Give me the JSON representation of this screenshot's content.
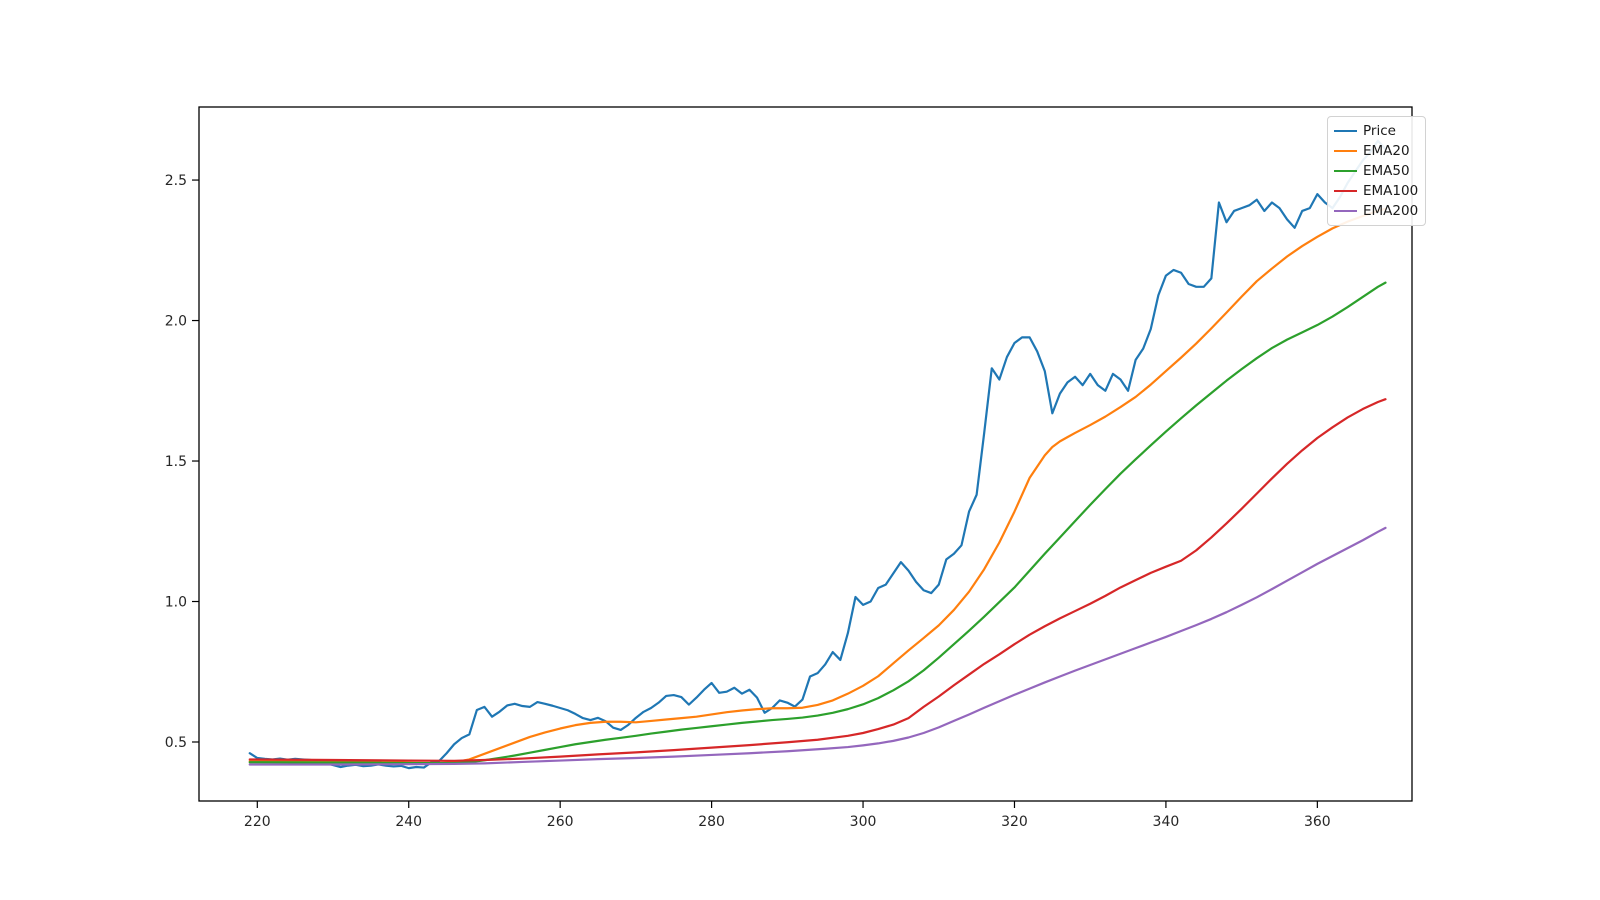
{
  "figure": {
    "background": "#ffffff"
  },
  "chart_data": {
    "type": "line",
    "title": "",
    "xlabel": "",
    "ylabel": "",
    "grid": false,
    "legend_position": "upper right",
    "xlim": [
      212.3,
      372.5
    ],
    "ylim": [
      0.29,
      2.76
    ],
    "x_ticks": [
      {
        "v": 220,
        "label": "220"
      },
      {
        "v": 240,
        "label": "240"
      },
      {
        "v": 260,
        "label": "260"
      },
      {
        "v": 280,
        "label": "280"
      },
      {
        "v": 300,
        "label": "300"
      },
      {
        "v": 320,
        "label": "320"
      },
      {
        "v": 340,
        "label": "340"
      },
      {
        "v": 360,
        "label": "360"
      }
    ],
    "y_ticks": [
      {
        "v": 0.5,
        "label": "0.5"
      },
      {
        "v": 1.0,
        "label": "1.0"
      },
      {
        "v": 1.5,
        "label": "1.5"
      },
      {
        "v": 2.0,
        "label": "2.0"
      },
      {
        "v": 2.5,
        "label": "2.5"
      }
    ],
    "series": [
      {
        "name": "Price",
        "color": "#1f77b4",
        "x_start": 219,
        "x_step": 1,
        "values": [
          0.46,
          0.443,
          0.44,
          0.438,
          0.441,
          0.437,
          0.44,
          0.438,
          0.436,
          0.433,
          0.425,
          0.418,
          0.411,
          0.416,
          0.419,
          0.414,
          0.416,
          0.42,
          0.416,
          0.413,
          0.415,
          0.407,
          0.411,
          0.409,
          0.428,
          0.432,
          0.46,
          0.492,
          0.514,
          0.527,
          0.614,
          0.625,
          0.59,
          0.608,
          0.63,
          0.636,
          0.628,
          0.625,
          0.642,
          0.636,
          0.629,
          0.621,
          0.613,
          0.6,
          0.585,
          0.578,
          0.586,
          0.574,
          0.551,
          0.543,
          0.561,
          0.586,
          0.607,
          0.621,
          0.64,
          0.664,
          0.667,
          0.66,
          0.633,
          0.658,
          0.686,
          0.71,
          0.675,
          0.679,
          0.693,
          0.672,
          0.686,
          0.658,
          0.604,
          0.621,
          0.648,
          0.64,
          0.626,
          0.651,
          0.733,
          0.745,
          0.776,
          0.82,
          0.792,
          0.888,
          1.016,
          0.988,
          1.0,
          1.048,
          1.06,
          1.1,
          1.14,
          1.11,
          1.07,
          1.04,
          1.03,
          1.06,
          1.15,
          1.17,
          1.2,
          1.32,
          1.38,
          1.6,
          1.83,
          1.79,
          1.87,
          1.92,
          1.94,
          1.94,
          1.89,
          1.82,
          1.67,
          1.74,
          1.78,
          1.8,
          1.77,
          1.81,
          1.77,
          1.75,
          1.81,
          1.79,
          1.75,
          1.86,
          1.9,
          1.97,
          2.09,
          2.16,
          2.18,
          2.17,
          2.13,
          2.12,
          2.12,
          2.15,
          2.42,
          2.35,
          2.39,
          2.4,
          2.41,
          2.43,
          2.39,
          2.42,
          2.4,
          2.36,
          2.33,
          2.39,
          2.4,
          2.45,
          2.42,
          2.4,
          2.44,
          2.49,
          2.53,
          2.57,
          2.6,
          2.64,
          2.61
        ]
      },
      {
        "name": "EMA20",
        "color": "#ff7f0e",
        "points": [
          [
            219,
            0.432
          ],
          [
            224,
            0.431
          ],
          [
            230,
            0.43
          ],
          [
            236,
            0.428
          ],
          [
            241,
            0.426
          ],
          [
            244,
            0.425
          ],
          [
            246,
            0.428
          ],
          [
            248,
            0.438
          ],
          [
            250,
            0.458
          ],
          [
            252,
            0.478
          ],
          [
            254,
            0.498
          ],
          [
            256,
            0.518
          ],
          [
            258,
            0.534
          ],
          [
            260,
            0.548
          ],
          [
            262,
            0.56
          ],
          [
            264,
            0.568
          ],
          [
            266,
            0.572
          ],
          [
            268,
            0.572
          ],
          [
            270,
            0.57
          ],
          [
            272,
            0.575
          ],
          [
            274,
            0.58
          ],
          [
            276,
            0.585
          ],
          [
            278,
            0.59
          ],
          [
            280,
            0.598
          ],
          [
            282,
            0.606
          ],
          [
            284,
            0.612
          ],
          [
            286,
            0.617
          ],
          [
            288,
            0.62
          ],
          [
            290,
            0.62
          ],
          [
            292,
            0.622
          ],
          [
            294,
            0.632
          ],
          [
            296,
            0.648
          ],
          [
            298,
            0.672
          ],
          [
            300,
            0.7
          ],
          [
            302,
            0.734
          ],
          [
            304,
            0.78
          ],
          [
            306,
            0.826
          ],
          [
            308,
            0.87
          ],
          [
            310,
            0.915
          ],
          [
            312,
            0.97
          ],
          [
            314,
            1.035
          ],
          [
            316,
            1.115
          ],
          [
            318,
            1.21
          ],
          [
            320,
            1.32
          ],
          [
            322,
            1.44
          ],
          [
            324,
            1.52
          ],
          [
            325,
            1.55
          ],
          [
            326,
            1.57
          ],
          [
            327,
            1.585
          ],
          [
            328,
            1.6
          ],
          [
            330,
            1.628
          ],
          [
            332,
            1.658
          ],
          [
            334,
            1.692
          ],
          [
            336,
            1.728
          ],
          [
            338,
            1.772
          ],
          [
            340,
            1.82
          ],
          [
            342,
            1.868
          ],
          [
            344,
            1.918
          ],
          [
            346,
            1.972
          ],
          [
            348,
            2.028
          ],
          [
            350,
            2.085
          ],
          [
            352,
            2.14
          ],
          [
            354,
            2.185
          ],
          [
            356,
            2.228
          ],
          [
            358,
            2.265
          ],
          [
            360,
            2.298
          ],
          [
            362,
            2.328
          ],
          [
            364,
            2.352
          ],
          [
            366,
            2.372
          ],
          [
            368,
            2.39
          ],
          [
            369,
            2.398
          ]
        ]
      },
      {
        "name": "EMA50",
        "color": "#2ca02c",
        "points": [
          [
            219,
            0.428
          ],
          [
            230,
            0.427
          ],
          [
            240,
            0.425
          ],
          [
            246,
            0.425
          ],
          [
            248,
            0.428
          ],
          [
            250,
            0.435
          ],
          [
            252,
            0.443
          ],
          [
            254,
            0.452
          ],
          [
            256,
            0.462
          ],
          [
            258,
            0.472
          ],
          [
            260,
            0.482
          ],
          [
            262,
            0.492
          ],
          [
            264,
            0.5
          ],
          [
            266,
            0.508
          ],
          [
            268,
            0.515
          ],
          [
            270,
            0.522
          ],
          [
            272,
            0.53
          ],
          [
            274,
            0.537
          ],
          [
            276,
            0.544
          ],
          [
            278,
            0.55
          ],
          [
            280,
            0.556
          ],
          [
            282,
            0.562
          ],
          [
            284,
            0.568
          ],
          [
            286,
            0.573
          ],
          [
            288,
            0.578
          ],
          [
            290,
            0.582
          ],
          [
            292,
            0.587
          ],
          [
            294,
            0.594
          ],
          [
            296,
            0.604
          ],
          [
            298,
            0.617
          ],
          [
            300,
            0.634
          ],
          [
            302,
            0.656
          ],
          [
            304,
            0.684
          ],
          [
            306,
            0.716
          ],
          [
            308,
            0.755
          ],
          [
            310,
            0.8
          ],
          [
            312,
            0.848
          ],
          [
            314,
            0.896
          ],
          [
            316,
            0.946
          ],
          [
            318,
            0.998
          ],
          [
            320,
            1.05
          ],
          [
            322,
            1.11
          ],
          [
            324,
            1.17
          ],
          [
            326,
            1.228
          ],
          [
            328,
            1.286
          ],
          [
            330,
            1.344
          ],
          [
            332,
            1.4
          ],
          [
            334,
            1.455
          ],
          [
            336,
            1.506
          ],
          [
            338,
            1.556
          ],
          [
            340,
            1.605
          ],
          [
            342,
            1.652
          ],
          [
            344,
            1.698
          ],
          [
            346,
            1.742
          ],
          [
            348,
            1.786
          ],
          [
            350,
            1.827
          ],
          [
            352,
            1.866
          ],
          [
            354,
            1.902
          ],
          [
            356,
            1.932
          ],
          [
            358,
            1.958
          ],
          [
            360,
            1.984
          ],
          [
            362,
            2.014
          ],
          [
            364,
            2.048
          ],
          [
            366,
            2.084
          ],
          [
            368,
            2.12
          ],
          [
            369,
            2.135
          ]
        ]
      },
      {
        "name": "EMA100",
        "color": "#d62728",
        "points": [
          [
            219,
            0.438
          ],
          [
            230,
            0.436
          ],
          [
            240,
            0.434
          ],
          [
            246,
            0.433
          ],
          [
            250,
            0.436
          ],
          [
            255,
            0.441
          ],
          [
            260,
            0.448
          ],
          [
            265,
            0.456
          ],
          [
            270,
            0.463
          ],
          [
            275,
            0.471
          ],
          [
            280,
            0.48
          ],
          [
            285,
            0.489
          ],
          [
            290,
            0.499
          ],
          [
            294,
            0.508
          ],
          [
            298,
            0.522
          ],
          [
            300,
            0.532
          ],
          [
            302,
            0.546
          ],
          [
            304,
            0.562
          ],
          [
            306,
            0.585
          ],
          [
            308,
            0.625
          ],
          [
            310,
            0.662
          ],
          [
            312,
            0.702
          ],
          [
            314,
            0.74
          ],
          [
            316,
            0.778
          ],
          [
            318,
            0.812
          ],
          [
            320,
            0.848
          ],
          [
            322,
            0.882
          ],
          [
            324,
            0.912
          ],
          [
            326,
            0.94
          ],
          [
            328,
            0.966
          ],
          [
            330,
            0.992
          ],
          [
            332,
            1.02
          ],
          [
            334,
            1.05
          ],
          [
            336,
            1.076
          ],
          [
            338,
            1.102
          ],
          [
            340,
            1.124
          ],
          [
            342,
            1.145
          ],
          [
            344,
            1.182
          ],
          [
            346,
            1.228
          ],
          [
            348,
            1.278
          ],
          [
            350,
            1.33
          ],
          [
            352,
            1.384
          ],
          [
            354,
            1.438
          ],
          [
            356,
            1.49
          ],
          [
            358,
            1.538
          ],
          [
            360,
            1.582
          ],
          [
            362,
            1.62
          ],
          [
            364,
            1.655
          ],
          [
            366,
            1.685
          ],
          [
            368,
            1.71
          ],
          [
            369,
            1.72
          ]
        ]
      },
      {
        "name": "EMA200",
        "color": "#9467bd",
        "points": [
          [
            219,
            0.42
          ],
          [
            230,
            0.42
          ],
          [
            240,
            0.421
          ],
          [
            246,
            0.422
          ],
          [
            250,
            0.424
          ],
          [
            255,
            0.429
          ],
          [
            260,
            0.434
          ],
          [
            265,
            0.439
          ],
          [
            270,
            0.443
          ],
          [
            275,
            0.448
          ],
          [
            280,
            0.454
          ],
          [
            285,
            0.46
          ],
          [
            290,
            0.467
          ],
          [
            295,
            0.476
          ],
          [
            298,
            0.482
          ],
          [
            300,
            0.488
          ],
          [
            302,
            0.495
          ],
          [
            304,
            0.504
          ],
          [
            306,
            0.516
          ],
          [
            308,
            0.532
          ],
          [
            310,
            0.552
          ],
          [
            312,
            0.575
          ],
          [
            314,
            0.598
          ],
          [
            316,
            0.622
          ],
          [
            318,
            0.645
          ],
          [
            320,
            0.668
          ],
          [
            322,
            0.69
          ],
          [
            324,
            0.712
          ],
          [
            326,
            0.733
          ],
          [
            328,
            0.754
          ],
          [
            330,
            0.774
          ],
          [
            332,
            0.794
          ],
          [
            334,
            0.814
          ],
          [
            336,
            0.834
          ],
          [
            338,
            0.854
          ],
          [
            340,
            0.874
          ],
          [
            342,
            0.895
          ],
          [
            344,
            0.916
          ],
          [
            346,
            0.938
          ],
          [
            348,
            0.962
          ],
          [
            350,
            0.988
          ],
          [
            352,
            1.015
          ],
          [
            354,
            1.044
          ],
          [
            356,
            1.074
          ],
          [
            358,
            1.104
          ],
          [
            360,
            1.134
          ],
          [
            362,
            1.162
          ],
          [
            364,
            1.19
          ],
          [
            366,
            1.218
          ],
          [
            368,
            1.248
          ],
          [
            369,
            1.262
          ]
        ]
      }
    ],
    "legend": {
      "entries": [
        "Price",
        "EMA20",
        "EMA50",
        "EMA100",
        "EMA200"
      ]
    }
  }
}
